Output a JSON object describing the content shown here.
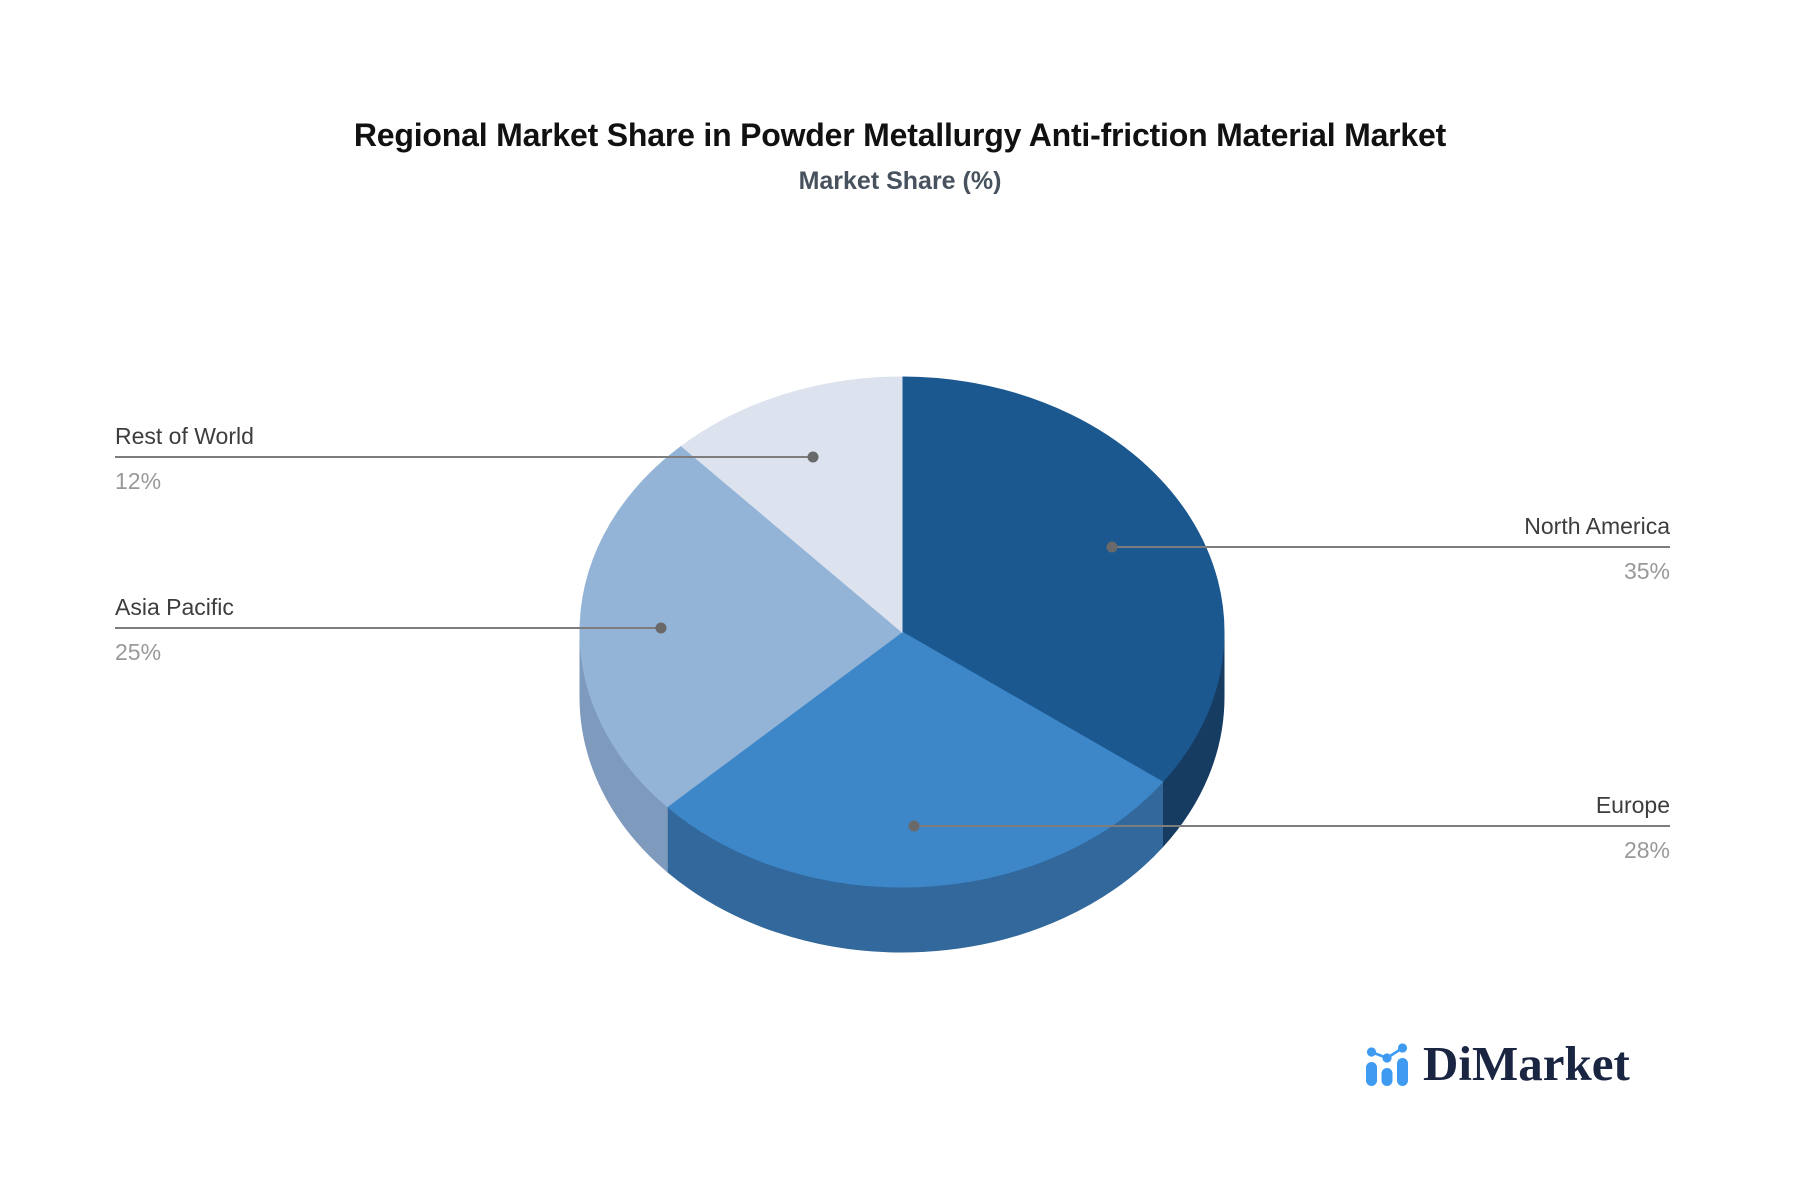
{
  "header": {
    "title": "Regional Market Share in Powder Metallurgy Anti-friction Material Market",
    "subtitle": "Market Share (%)"
  },
  "chart_data": {
    "type": "pie",
    "style": "3d",
    "title": "Regional Market Share in Powder Metallurgy Anti-friction Material Market",
    "subtitle": "Market Share (%)",
    "unit": "%",
    "start_angle_deg": 0,
    "direction": "clockwise",
    "legend_position": "leader-labels",
    "slices": [
      {
        "label": "North America",
        "value": 35,
        "display": "35%",
        "color": "#1c5890",
        "side_color": "#173c62",
        "label_side": "right"
      },
      {
        "label": "Europe",
        "value": 28,
        "display": "28%",
        "color": "#3d87c9",
        "side_color": "#32689b",
        "label_side": "right"
      },
      {
        "label": "Asia Pacific",
        "value": 25,
        "display": "25%",
        "color": "#93b4d7",
        "side_color": "#7e9abc",
        "label_side": "left"
      },
      {
        "label": "Rest of World",
        "value": 12,
        "display": "12%",
        "color": "#dde3ee",
        "side_color": "#c6cfdd",
        "label_side": "left"
      }
    ]
  },
  "colors": {
    "background": "#ffffff",
    "title_text": "#111111",
    "subtitle_text": "#47525e",
    "label_text": "#3d3d3d",
    "value_text": "#999999",
    "leader_line": "#7d7d7d",
    "leader_dot": "#696969",
    "logo_blue": "#3f9bf2",
    "logo_navy": "#1a2542"
  },
  "logo": {
    "text": "DiMarket"
  }
}
